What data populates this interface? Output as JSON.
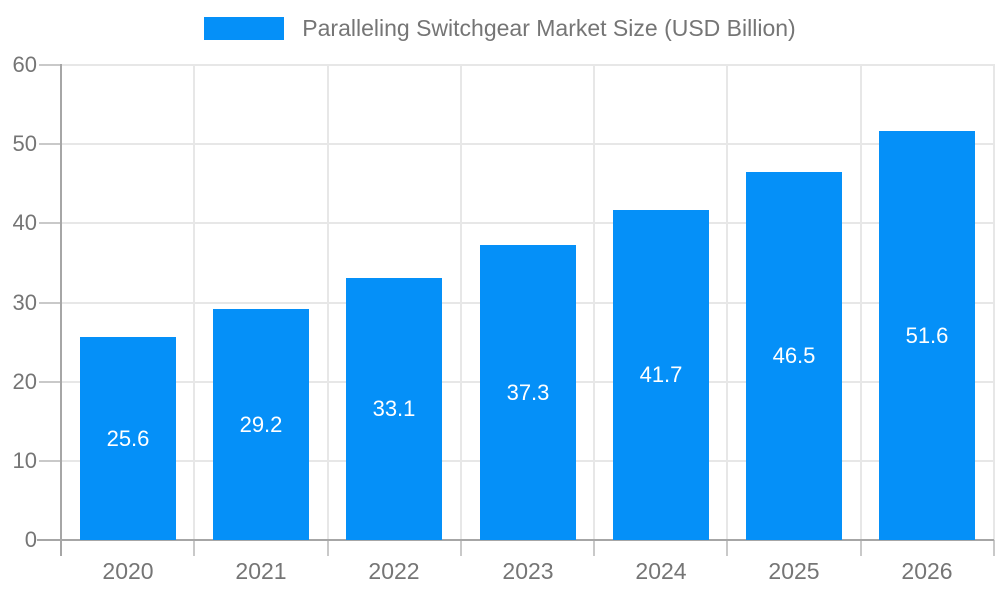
{
  "legend": {
    "label": "Paralleling Switchgear Market Size (USD Billion)"
  },
  "chart_data": {
    "type": "bar",
    "title": "Paralleling Switchgear Market Size (USD Billion)",
    "categories": [
      "2020",
      "2021",
      "2022",
      "2023",
      "2024",
      "2025",
      "2026"
    ],
    "values": [
      25.6,
      29.2,
      33.1,
      37.3,
      41.7,
      46.5,
      51.6
    ],
    "value_labels": [
      "25.6",
      "29.2",
      "33.1",
      "37.3",
      "41.7",
      "46.5",
      "51.6"
    ],
    "xlabel": "",
    "ylabel": "",
    "ylim": [
      0,
      60
    ],
    "yticks": [
      0,
      10,
      20,
      30,
      40,
      50,
      60
    ],
    "grid": true,
    "legend_position": "top",
    "value_label_position": "center-inside"
  },
  "colors": {
    "bar": "#0590f8",
    "value_label": "#ffffff",
    "axis_line": "#a6a6a6",
    "gridline": "#e7e7e7",
    "tick": "#c9c9c9",
    "text": "#757575",
    "background": "#ffffff"
  }
}
